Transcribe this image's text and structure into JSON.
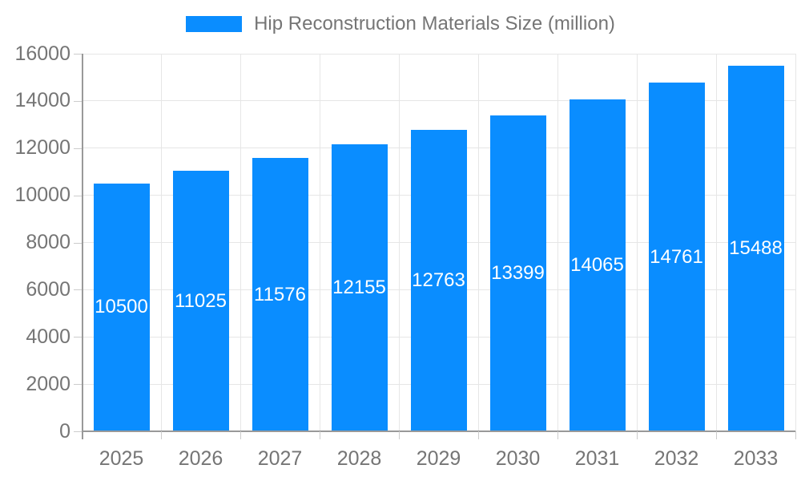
{
  "legend": {
    "label": "Hip Reconstruction Materials Size (million)",
    "swatch_color": "#0a8dff"
  },
  "chart_data": {
    "type": "bar",
    "title": "Hip Reconstruction Materials Size (million)",
    "categories": [
      "2025",
      "2026",
      "2027",
      "2028",
      "2029",
      "2030",
      "2031",
      "2032",
      "2033"
    ],
    "values": [
      10500,
      11025,
      11576,
      12155,
      12763,
      13399,
      14065,
      14761,
      15488
    ],
    "value_labels": [
      "10500",
      "11025",
      "11576",
      "12155",
      "12763",
      "13399",
      "14065",
      "14761",
      "15488"
    ],
    "xlabel": "",
    "ylabel": "",
    "ylim": [
      0,
      16000
    ],
    "yticks": [
      0,
      2000,
      4000,
      6000,
      8000,
      10000,
      12000,
      14000,
      16000
    ],
    "ytick_labels": [
      "0",
      "2000",
      "4000",
      "6000",
      "8000",
      "10000",
      "12000",
      "14000",
      "16000"
    ],
    "grid": true,
    "legend_position": "top",
    "colors": {
      "bar": "#0a8dff",
      "value_label_text": "#ffffff",
      "axis_text": "#757575",
      "axis_line": "#999999",
      "gridline": "#e6e6e6",
      "tick": "#cccccc",
      "background": "#ffffff"
    }
  }
}
